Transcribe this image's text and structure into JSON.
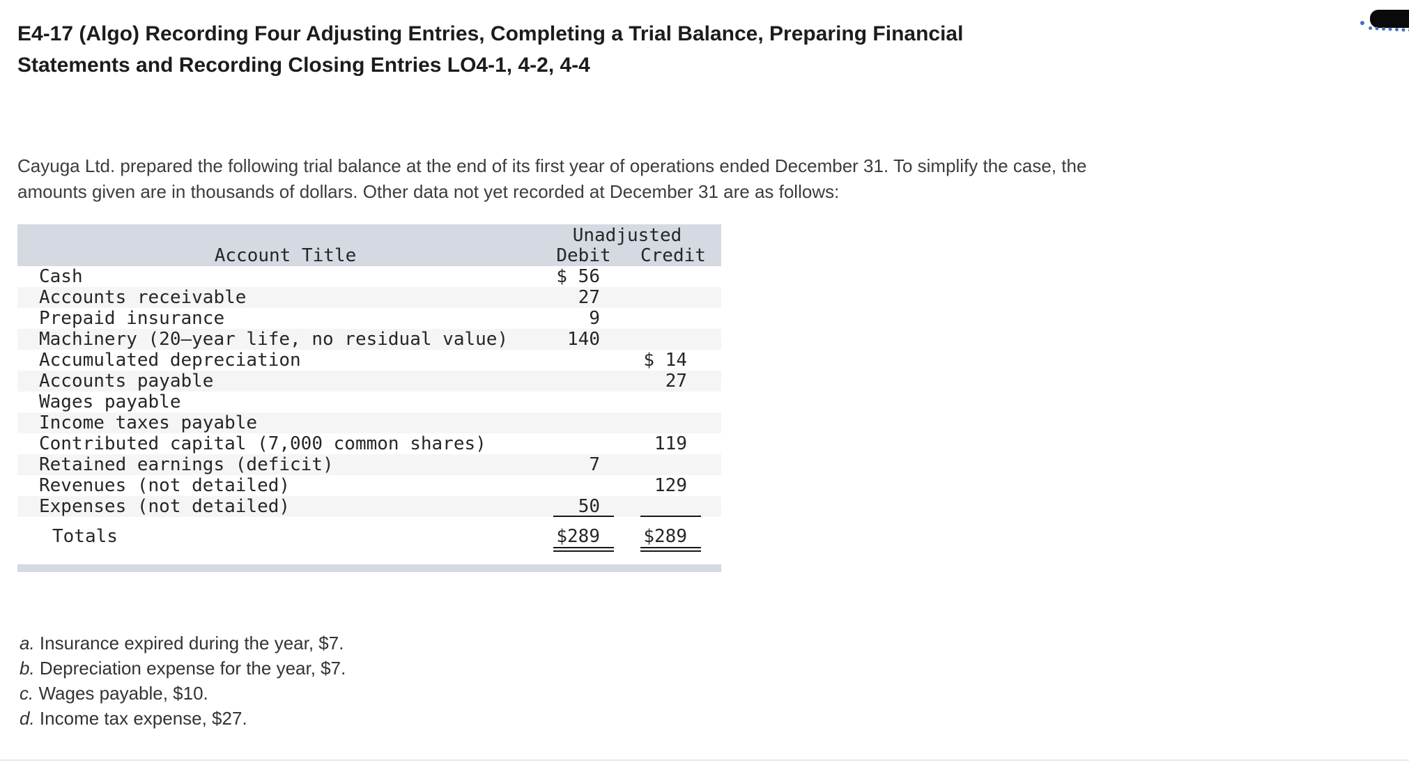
{
  "colors": {
    "table_header_bg": "#d5d9e2",
    "row_stripe": "#f5f5f6",
    "rule_color": "#161616",
    "focus_dot": "#4472c4",
    "divider": "#e7e7e9"
  },
  "header": {
    "title_lines": [
      "E4-17 (Algo) Recording Four Adjusting Entries, Completing a Trial Balance, Preparing Financial",
      "Statements and Recording Closing Entries LO4-1, 4-2, 4-4"
    ]
  },
  "intro": {
    "lines": [
      "Cayuga Ltd. prepared the following trial balance at the end of its first year of operations ended December 31. To simplify the case, the",
      "amounts given are in thousands of dollars. Other data not yet recorded at December 31 are as follows:"
    ]
  },
  "trial_balance": {
    "header": {
      "account_title": "Account Title",
      "group": "Unadjusted",
      "debit": "Debit",
      "credit": "Credit"
    },
    "rows": [
      {
        "account": "Cash",
        "debit": "$ 56",
        "credit": ""
      },
      {
        "account": "Accounts receivable",
        "debit": "27",
        "credit": ""
      },
      {
        "account": "Prepaid insurance",
        "debit": "9",
        "credit": ""
      },
      {
        "account": "Machinery (20–year life, no residual value)",
        "debit": "140",
        "credit": ""
      },
      {
        "account": "Accumulated depreciation",
        "debit": "",
        "credit": "$ 14"
      },
      {
        "account": "Accounts payable",
        "debit": "",
        "credit": "27"
      },
      {
        "account": "Wages payable",
        "debit": "",
        "credit": ""
      },
      {
        "account": "Income taxes payable",
        "debit": "",
        "credit": ""
      },
      {
        "account": "Contributed capital (7,000 common shares)",
        "debit": "",
        "credit": "119"
      },
      {
        "account": "Retained earnings (deficit)",
        "debit": "7",
        "credit": ""
      },
      {
        "account": "Revenues (not detailed)",
        "debit": "",
        "credit": "129"
      },
      {
        "account": "Expenses (not detailed)",
        "debit": "50",
        "credit": ""
      }
    ],
    "totals": {
      "label": "Totals",
      "debit": "$289",
      "credit": "$289"
    }
  },
  "adjustments": [
    {
      "letter": "a.",
      "text": "Insurance expired during the year, $7."
    },
    {
      "letter": "b.",
      "text": "Depreciation expense for the year, $7."
    },
    {
      "letter": "c.",
      "text": "Wages payable, $10."
    },
    {
      "letter": "d.",
      "text": "Income tax expense, $27."
    }
  ]
}
